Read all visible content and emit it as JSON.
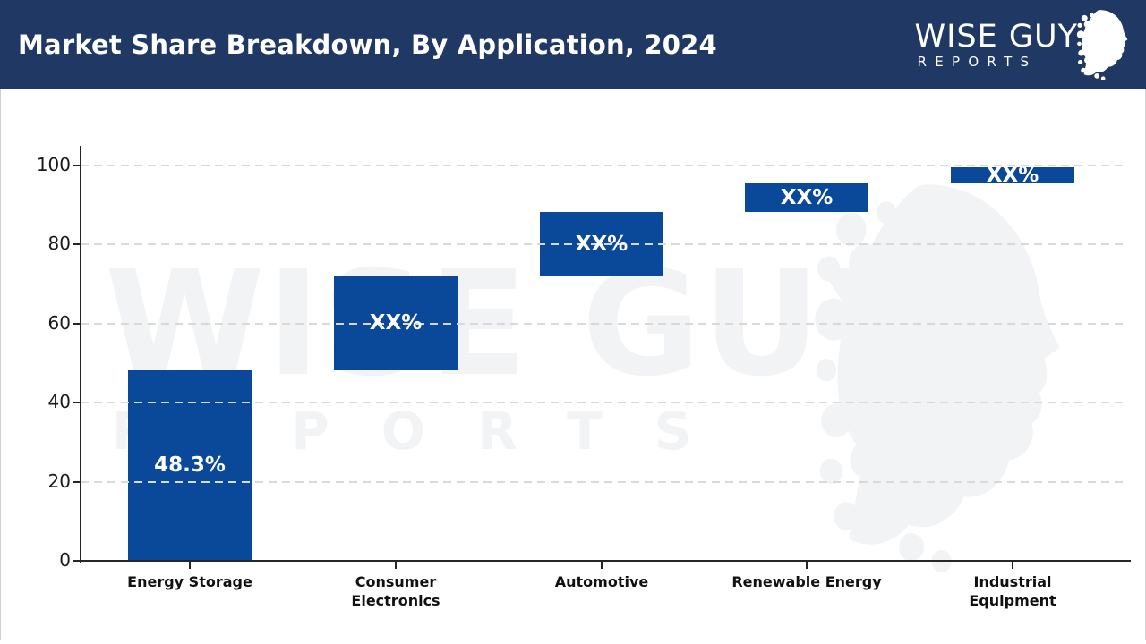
{
  "colors": {
    "header_bg": "#1F3864",
    "bar": "#0A489A",
    "grid": "#D9D9D9",
    "axis": "#262626",
    "watermark": "#F2F3F5"
  },
  "header": {
    "title": "Market Share Breakdown, By Application, 2024",
    "logo": {
      "brand": "WISE GUY",
      "sub": "REPORTS"
    }
  },
  "watermark": {
    "brand": "WISE GUY",
    "sub": "REPORTS"
  },
  "chart_data": {
    "type": "bar",
    "variant": "waterfall",
    "title": "Market Share Breakdown, By Application, 2024",
    "xlabel": "",
    "ylabel": "",
    "ylim": [
      0,
      105
    ],
    "yticks": [
      0,
      20,
      40,
      60,
      80,
      100
    ],
    "grid": "horizontal dashed",
    "legend": "none",
    "bar_color": "#0A489A",
    "label_color": "#ffffff",
    "categories": [
      "Energy Storage",
      "Consumer\nElectronics",
      "Automotive",
      "Renewable Energy",
      "Industrial\nEquipment"
    ],
    "segments": [
      {
        "category": "Energy Storage",
        "start": 0,
        "end": 48.3,
        "label": "48.3%"
      },
      {
        "category": "Consumer Electronics",
        "start": 48.3,
        "end": 72.0,
        "label": "XX%"
      },
      {
        "category": "Automotive",
        "start": 72.0,
        "end": 88.2,
        "label": "XX%"
      },
      {
        "category": "Renewable Energy",
        "start": 88.2,
        "end": 95.4,
        "label": "XX%"
      },
      {
        "category": "Industrial Equipment",
        "start": 95.4,
        "end": 99.6,
        "label": "XX%"
      }
    ]
  }
}
